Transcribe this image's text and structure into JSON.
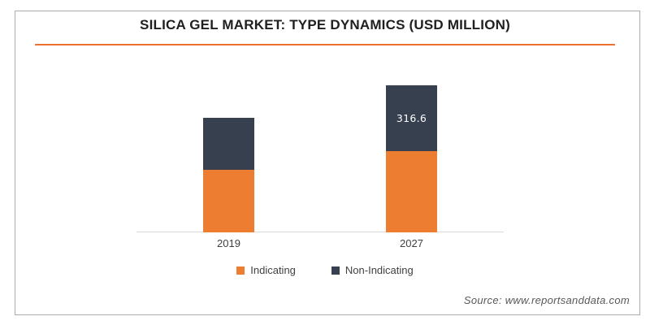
{
  "header": {
    "title": "SILICA GEL MARKET: TYPE DYNAMICS (USD MILLION)"
  },
  "chart_data": {
    "type": "bar",
    "stacked": true,
    "orientation": "vertical",
    "title": "SILICA GEL MARKET: TYPE DYNAMICS (USD MILLION)",
    "units": "USD Million",
    "categories": [
      "2019",
      "2027"
    ],
    "series": [
      {
        "name": "Indicating",
        "color": "#ED7D31",
        "values": [
          300,
          390
        ]
      },
      {
        "name": "Non-Indicating",
        "color": "#36404F",
        "values": [
          250,
          316.6
        ]
      }
    ],
    "data_labels": [
      {
        "series": "Non-Indicating",
        "category": "2027",
        "text": "316.6",
        "color": "#FFFFFF"
      }
    ],
    "xlabel": "",
    "ylabel": "",
    "ylim": [
      0,
      750
    ],
    "y_axis_visible": false,
    "gridlines": false,
    "legend_position": "bottom"
  },
  "legend": {
    "items": [
      {
        "label": "Indicating",
        "color": "#ED7D31"
      },
      {
        "label": "Non-Indicating",
        "color": "#36404F"
      }
    ]
  },
  "footer": {
    "source": "Source: www.reportsanddata.com"
  },
  "colors": {
    "accent_orange": "#ED7D31",
    "dark_navy": "#36404F",
    "divider_orange": "#ED7135",
    "axis_line": "#D9D9D9",
    "title_text": "#1F1F1F",
    "axis_label_text": "#404040",
    "source_text": "#595959",
    "frame_border": "#ABABAB"
  }
}
